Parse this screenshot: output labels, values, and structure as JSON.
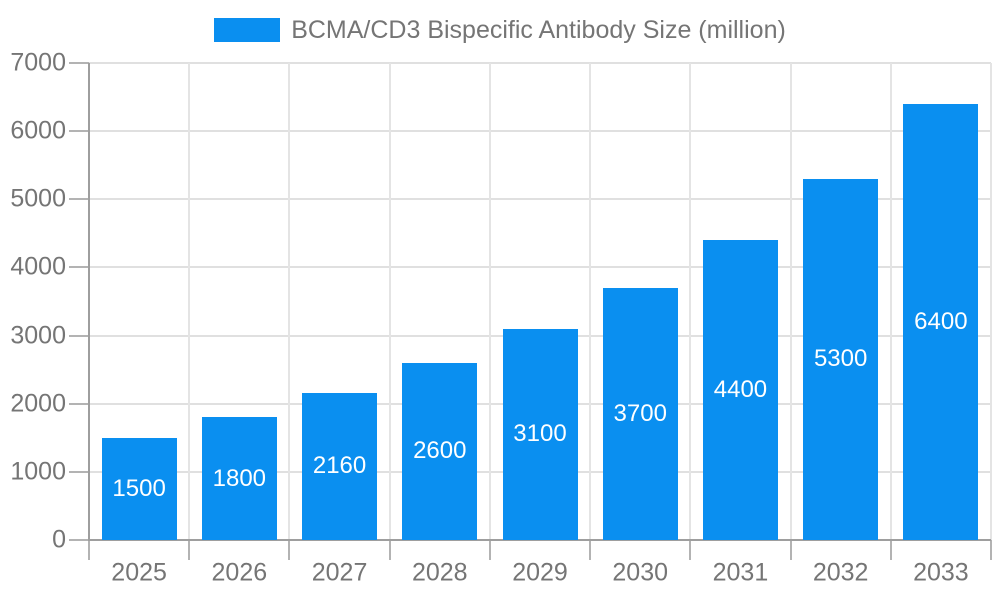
{
  "chart_data": {
    "type": "bar",
    "title": "BCMA/CD3 Bispecific Antibody Size (million)",
    "categories": [
      "2025",
      "2026",
      "2027",
      "2028",
      "2029",
      "2030",
      "2031",
      "2032",
      "2033"
    ],
    "values": [
      1500,
      1800,
      2160,
      2600,
      3100,
      3700,
      4400,
      5300,
      6400
    ],
    "xlabel": "",
    "ylabel": "",
    "ylim": [
      0,
      7000
    ],
    "yticks": [
      0,
      1000,
      2000,
      3000,
      4000,
      5000,
      6000,
      7000
    ],
    "grid": true,
    "legend_position": "top",
    "colors": {
      "bar": "#0a8ff0",
      "bar_value_label": "#ffffff",
      "axis_text": "#757575",
      "grid_line": "#e0e0e0",
      "axis_line": "#9e9e9e",
      "tick_line": "#b3b3b3",
      "background": "#ffffff"
    }
  }
}
